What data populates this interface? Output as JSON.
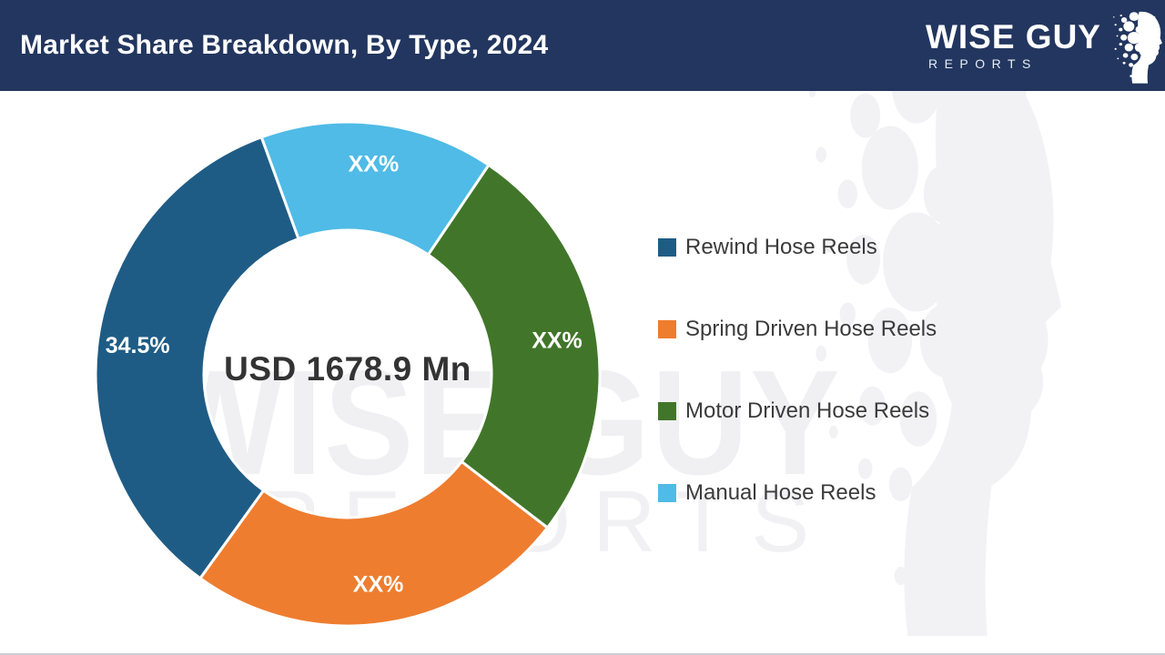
{
  "header": {
    "title": "Market Share Breakdown, By Type, 2024",
    "logo": {
      "name": "WISE GUY",
      "subname": "REPORTS"
    }
  },
  "watermark": {
    "line1": "WISE GUY",
    "line2": "REPORTS"
  },
  "chart_data": {
    "type": "pie",
    "subtype": "donut",
    "title": "Market Share Breakdown, By Type, 2024",
    "center_label": "USD 1678.9 Mn",
    "categories": [
      "Rewind Hose Reels",
      "Spring Driven Hose Reels",
      "Motor Driven Hose Reels",
      "Manual Hose Reels"
    ],
    "values_pct": [
      34.5,
      24.5,
      26,
      15
    ],
    "slice_labels": [
      "34.5%",
      "XX%",
      "XX%",
      "XX%"
    ],
    "colors": [
      "#1f5c85",
      "#ee7d2f",
      "#41762a",
      "#4fbbe6"
    ],
    "start_angle_deg": 110,
    "direction": "counterclockwise",
    "legend_position": "right",
    "legend_labels": [
      "Rewind Hose Reels",
      "Spring Driven Hose Reels",
      "Motor Driven Hose Reels",
      "Manual Hose Reels"
    ]
  },
  "theme": {
    "header_bg": "#22365f",
    "slice_label_color": "#ffffff",
    "center_label_color": "#333333",
    "legend_text_color": "#3b3b3b",
    "watermark_color": "#f0f0f2"
  }
}
